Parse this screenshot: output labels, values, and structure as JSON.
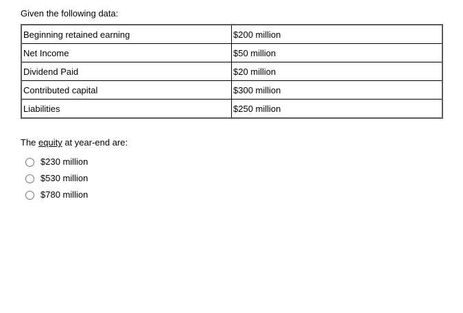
{
  "intro": "Given the following data:",
  "table": {
    "rows": [
      {
        "label": "Beginning retained earning",
        "value": "$200 million"
      },
      {
        "label": "Net Income",
        "value": "$50 million"
      },
      {
        "label": "Dividend Paid",
        "value": "$20 million"
      },
      {
        "label": "Contributed capital",
        "value": "$300 million"
      },
      {
        "label": "Liabilities",
        "value": "$250 million"
      }
    ]
  },
  "question": {
    "prefix": "The ",
    "underlined_term": "equity",
    "suffix": " at year-end are:"
  },
  "options": [
    {
      "label": "$230 million",
      "selected": false
    },
    {
      "label": "$530 million",
      "selected": false
    },
    {
      "label": "$780 million",
      "selected": false
    }
  ],
  "colors": {
    "text": "#000000",
    "table_outer_border": "#5b5b5b",
    "table_inner_border": "#000000",
    "radio_border": "#757575",
    "background": "#ffffff"
  }
}
